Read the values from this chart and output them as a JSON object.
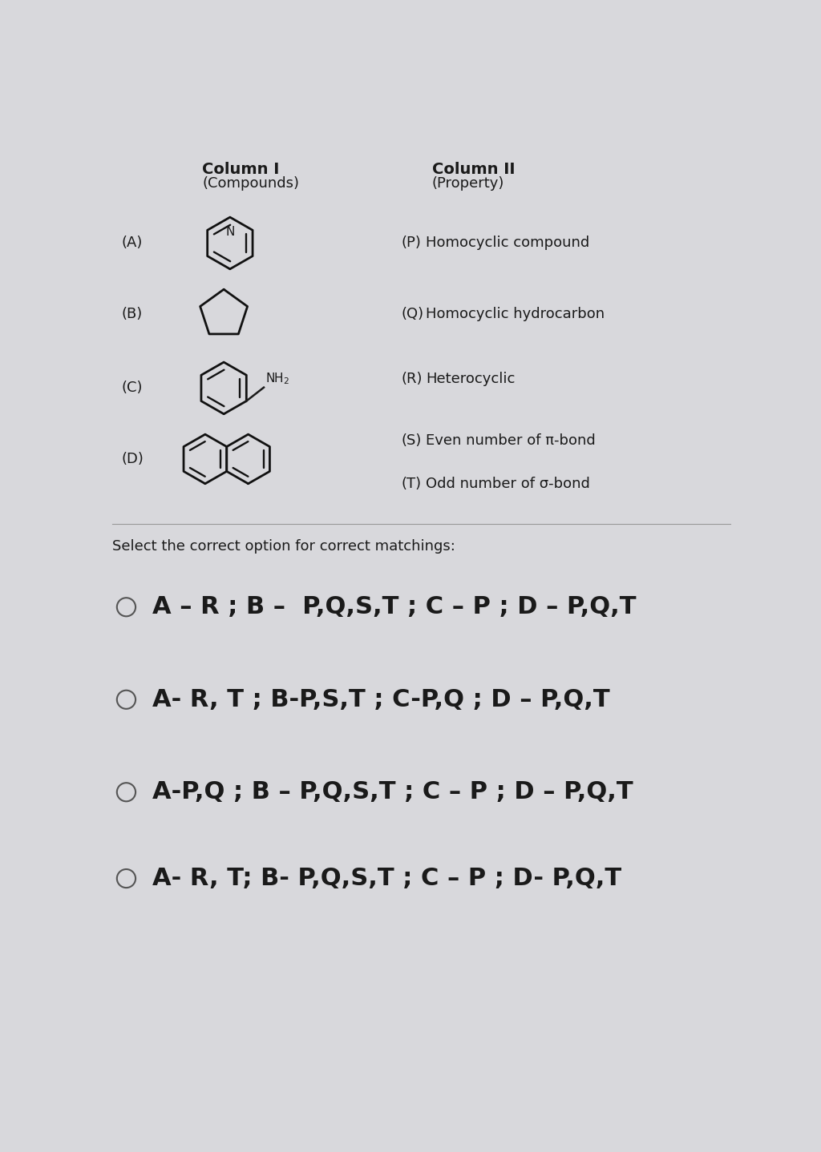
{
  "bg_color": "#d8d8dc",
  "text_color": "#1a1a1a",
  "title_col1": "Column I",
  "subtitle_col1": "(Compounds)",
  "title_col2": "Column II",
  "subtitle_col2": "(Property)",
  "col2_labels": [
    "(P)",
    "(Q)",
    "(R)",
    "(S)",
    "(T)"
  ],
  "col2_texts": [
    "Homocyclic compound",
    "Homocyclic hydrocarbon",
    "Heterocyclic",
    "Even number of π-bond",
    "Odd number of σ-bond"
  ],
  "select_text": "Select the correct option for correct matchings:",
  "options": [
    "A – R ; B –  P,Q,S,T ; C – P ; D – P,Q,T",
    "A- R, T ; B-P,S,T ; C-P,Q ; D – P,Q,T",
    "A-P,Q ; B – P,Q,S,T ; C – P ; D – P,Q,T",
    "A- R, T; B- P,Q,S,T ; C – P ; D- P,Q,T"
  ],
  "circle_color": "#555555",
  "font_size_header": 14,
  "font_size_body": 13,
  "font_size_label": 13,
  "font_size_options": 22
}
